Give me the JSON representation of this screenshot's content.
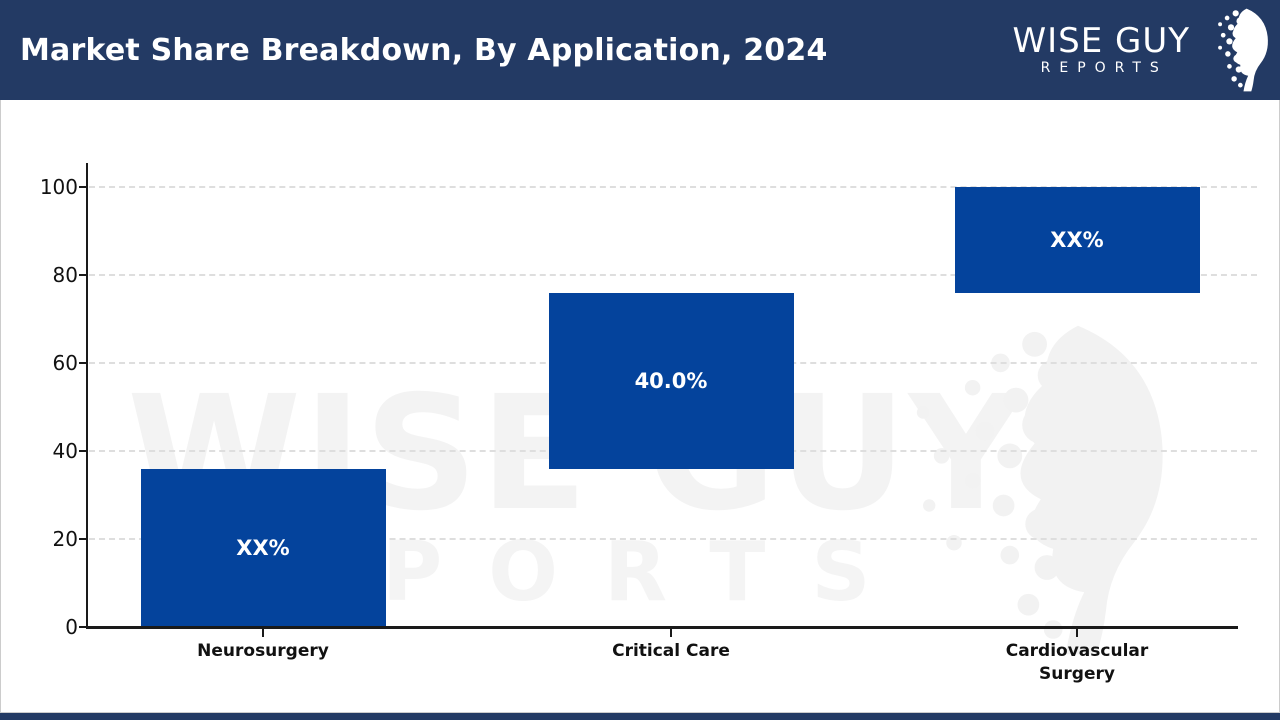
{
  "header": {
    "title": "Market Share Breakdown, By Application, 2024",
    "logo": {
      "line1": "WISE GUY",
      "line2": "REPORTS"
    }
  },
  "watermark": {
    "line1": "WISE GUY",
    "line2": "REPORTS"
  },
  "colors": {
    "header_bg": "#233a64",
    "footer_bg": "#233a64",
    "bar": "#04439c",
    "grid": "#dedede",
    "axis": "#1a1a1a",
    "bar_label_text": "#ffffff",
    "watermark": "#f3f3f3"
  },
  "chart_data": {
    "type": "bar",
    "subtype": "waterfall",
    "title": "Market Share Breakdown, By Application, 2024",
    "categories": [
      "Neurosurgery",
      "Critical Care",
      "Cardiovascular Surgery"
    ],
    "series": [
      {
        "name": "Market Share",
        "base": [
          0,
          36,
          76
        ],
        "value": [
          36,
          40,
          24
        ]
      }
    ],
    "bar_labels": [
      "XX%",
      "40.0%",
      "XX%"
    ],
    "yticks": [
      0,
      20,
      40,
      60,
      80,
      100
    ],
    "ylim": [
      0,
      105
    ],
    "xlabel": "",
    "ylabel": "",
    "grid": "horizontal-dashed",
    "legend": "none"
  }
}
